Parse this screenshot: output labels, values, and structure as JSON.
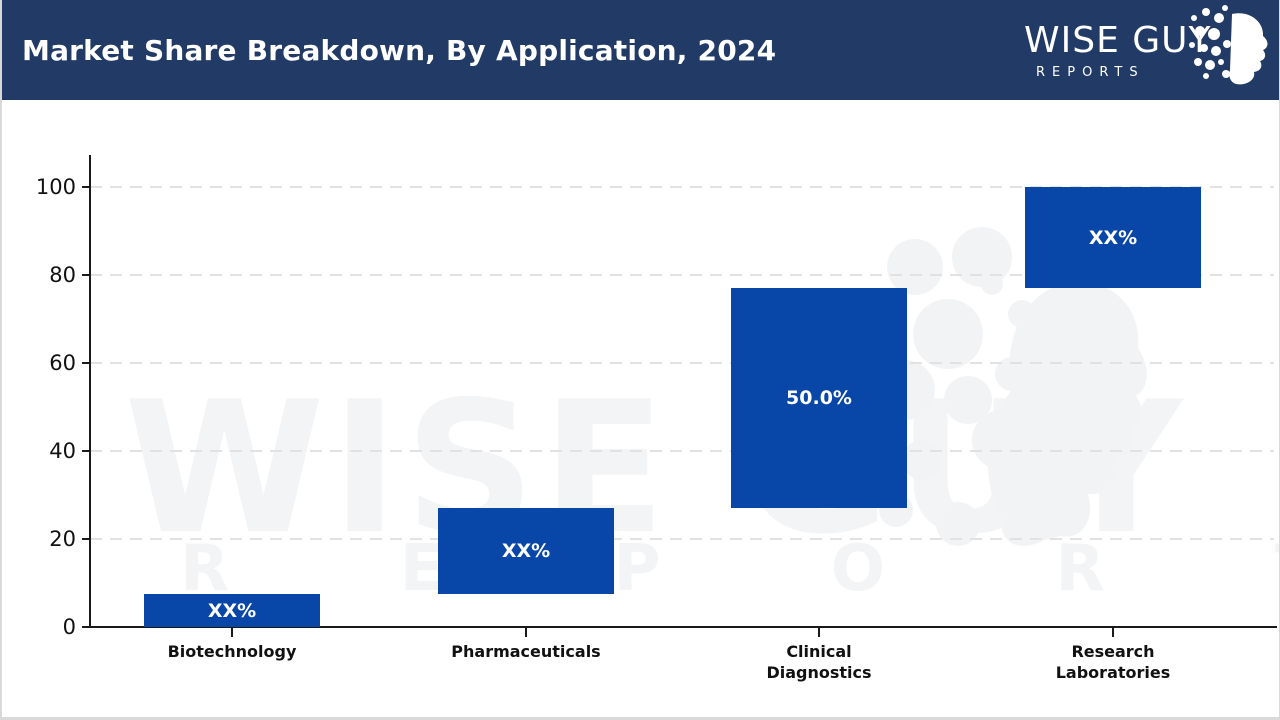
{
  "header": {
    "title": "Market Share Breakdown, By Application, 2024",
    "logo": {
      "line1": "WISE GUY",
      "line2": "R E P O R T S"
    }
  },
  "watermark": {
    "line1": "WISE GUY",
    "line2": "R E P O R T S"
  },
  "colors": {
    "header_bg": "#213a66",
    "bar_blue": "#0847a8",
    "grid_gray": "#e2e2e2",
    "axis_black": "#1a1a1a",
    "watermark_gray": "#f3f4f6"
  },
  "chart_data": {
    "type": "bar",
    "subtype": "waterfall-stacked-breakdown",
    "title": "Market Share Breakdown, By Application, 2024",
    "categories": [
      "Biotechnology",
      "Pharmaceuticals",
      "Clinical Diagnostics",
      "Research Laboratories"
    ],
    "bars": [
      {
        "category": "Biotechnology",
        "start": 0,
        "end": 7.5,
        "value": 7.5,
        "label": "XX%"
      },
      {
        "category": "Pharmaceuticals",
        "start": 7.5,
        "end": 27,
        "value": 19.5,
        "label": "XX%"
      },
      {
        "category": "Clinical Diagnostics",
        "start": 27,
        "end": 77,
        "value": 50.0,
        "label": "50.0%"
      },
      {
        "category": "Research Laboratories",
        "start": 77,
        "end": 100,
        "value": 23.0,
        "label": "XX%"
      }
    ],
    "yticks": [
      0,
      20,
      40,
      60,
      80,
      100
    ],
    "ylim": [
      0,
      107
    ],
    "xlabel": "",
    "ylabel": "",
    "grid": "horizontal-dashed",
    "legend": "none",
    "bar_color": "#0847a8",
    "label_color": "#ffffff"
  }
}
